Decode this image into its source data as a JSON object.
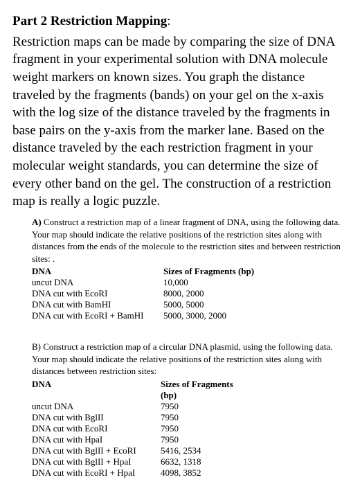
{
  "title_part": "Part 2 Restriction Mapping",
  "title_colon": ":",
  "intro": "Restriction maps can be made by comparing the size of DNA fragment in your experimental solution with DNA molecule weight markers on known sizes.  You graph the  distance traveled by the fragments (bands) on your gel on the x-axis with the log size of the distance traveled by the fragments in base pairs on the y-axis from the marker lane.  Based on the distance traveled by the each restriction fragment in your molecular weight standards, you can determine the size of every other band on the gel.  The construction of a restriction map is really a logic puzzle.",
  "partA": {
    "label": "A)",
    "text": " Construct a restriction map of a linear fragment of DNA, using the following data. Your map should indicate the relative positions of the restriction sites along with distances from the ends of the molecule to the restriction sites and between restriction sites: .",
    "col1": "DNA",
    "col2": "Sizes of Fragments (bp)",
    "rows": [
      {
        "c1": "uncut DNA",
        "c2": "10,000"
      },
      {
        "c1": "DNA cut with EcoRI",
        "c2": "8000, 2000"
      },
      {
        "c1": "DNA cut with BamHI",
        "c2": "5000, 5000"
      },
      {
        "c1": "DNA cut with EcoRI + BamHI",
        "c2": "5000, 3000, 2000"
      }
    ]
  },
  "partB": {
    "label": "B)",
    "text": " Construct a restriction map of a circular DNA plasmid, using the following data. Your map should indicate the relative positions of the restriction sites along with distances between restriction sites:",
    "col1": "DNA",
    "col2a": "Sizes of Fragments",
    "col2b": "(bp)",
    "rows": [
      {
        "c1": "uncut DNA",
        "c2": "7950"
      },
      {
        "c1": "DNA cut with BglII",
        "c2": "7950"
      },
      {
        "c1": "DNA cut with EcoRI",
        "c2": "7950"
      },
      {
        "c1": "DNA cut with HpaI",
        "c2": "7950"
      },
      {
        "c1": "DNA cut with BglII + EcoRI",
        "c2": "5416, 2534"
      },
      {
        "c1": "DNA cut with BglII + HpaI",
        "c2": "6632, 1318"
      },
      {
        "c1": "DNA cut with EcoRI + HpaI",
        "c2": "4098, 3852"
      }
    ]
  }
}
